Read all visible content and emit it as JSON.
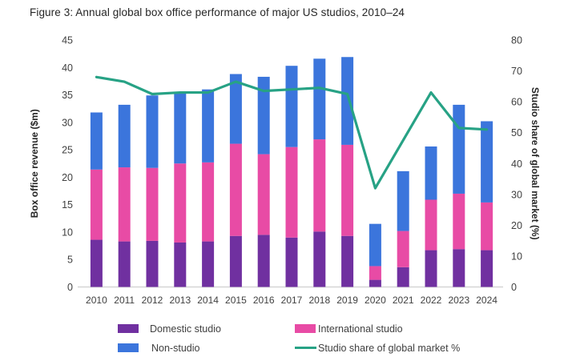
{
  "chart_data": {
    "type": "bar",
    "subtype": "stacked-bars-with-line-overlay",
    "title": "Figure 3: Annual global box office performance of major US studios, 2010–24",
    "categories": [
      "2010",
      "2011",
      "2012",
      "2013",
      "2014",
      "2015",
      "2016",
      "2017",
      "2018",
      "2019",
      "2020",
      "2021",
      "2022",
      "2023",
      "2024"
    ],
    "series": [
      {
        "name": "Domestic studio",
        "color": "#7030A0",
        "values": [
          8.6,
          8.3,
          8.4,
          8.1,
          8.3,
          9.3,
          9.5,
          9.0,
          10.1,
          9.3,
          1.3,
          3.6,
          6.7,
          6.9,
          6.7
        ]
      },
      {
        "name": "International studio",
        "color": "#E84BA5",
        "values": [
          12.8,
          13.5,
          13.3,
          14.4,
          14.4,
          16.8,
          14.7,
          16.5,
          16.8,
          16.6,
          2.5,
          6.6,
          9.2,
          10.1,
          8.7
        ]
      },
      {
        "name": "Non-studio",
        "color": "#3B75DC",
        "values": [
          10.4,
          11.4,
          13.2,
          12.8,
          13.3,
          12.7,
          14.1,
          14.8,
          14.7,
          16.0,
          7.7,
          10.9,
          9.7,
          16.2,
          14.8
        ]
      }
    ],
    "stack_totals": [
      31.8,
      33.2,
      34.9,
      35.3,
      36.0,
      38.8,
      38.3,
      40.3,
      41.6,
      41.9,
      11.5,
      21.1,
      25.6,
      33.2,
      30.2
    ],
    "line_series": {
      "name": "Studio share of global market %",
      "color": "#27A285",
      "axis": "right",
      "values": [
        68,
        66.5,
        62.5,
        63,
        63,
        66.5,
        63.5,
        64,
        64.5,
        62.5,
        32,
        47.5,
        63,
        51.5,
        51
      ]
    },
    "left_axis": {
      "label": "Box office revenue ($m)",
      "min": 0,
      "max": 45,
      "step": 5
    },
    "right_axis": {
      "label": "Studio share of global market (%)",
      "min": 0,
      "max": 80,
      "step": 10
    },
    "grid": "off",
    "legend_position": "bottom",
    "colors": {
      "tick_text": "#404040",
      "axis_title_text": "#262626",
      "baseline": "#D6D6D6"
    }
  }
}
